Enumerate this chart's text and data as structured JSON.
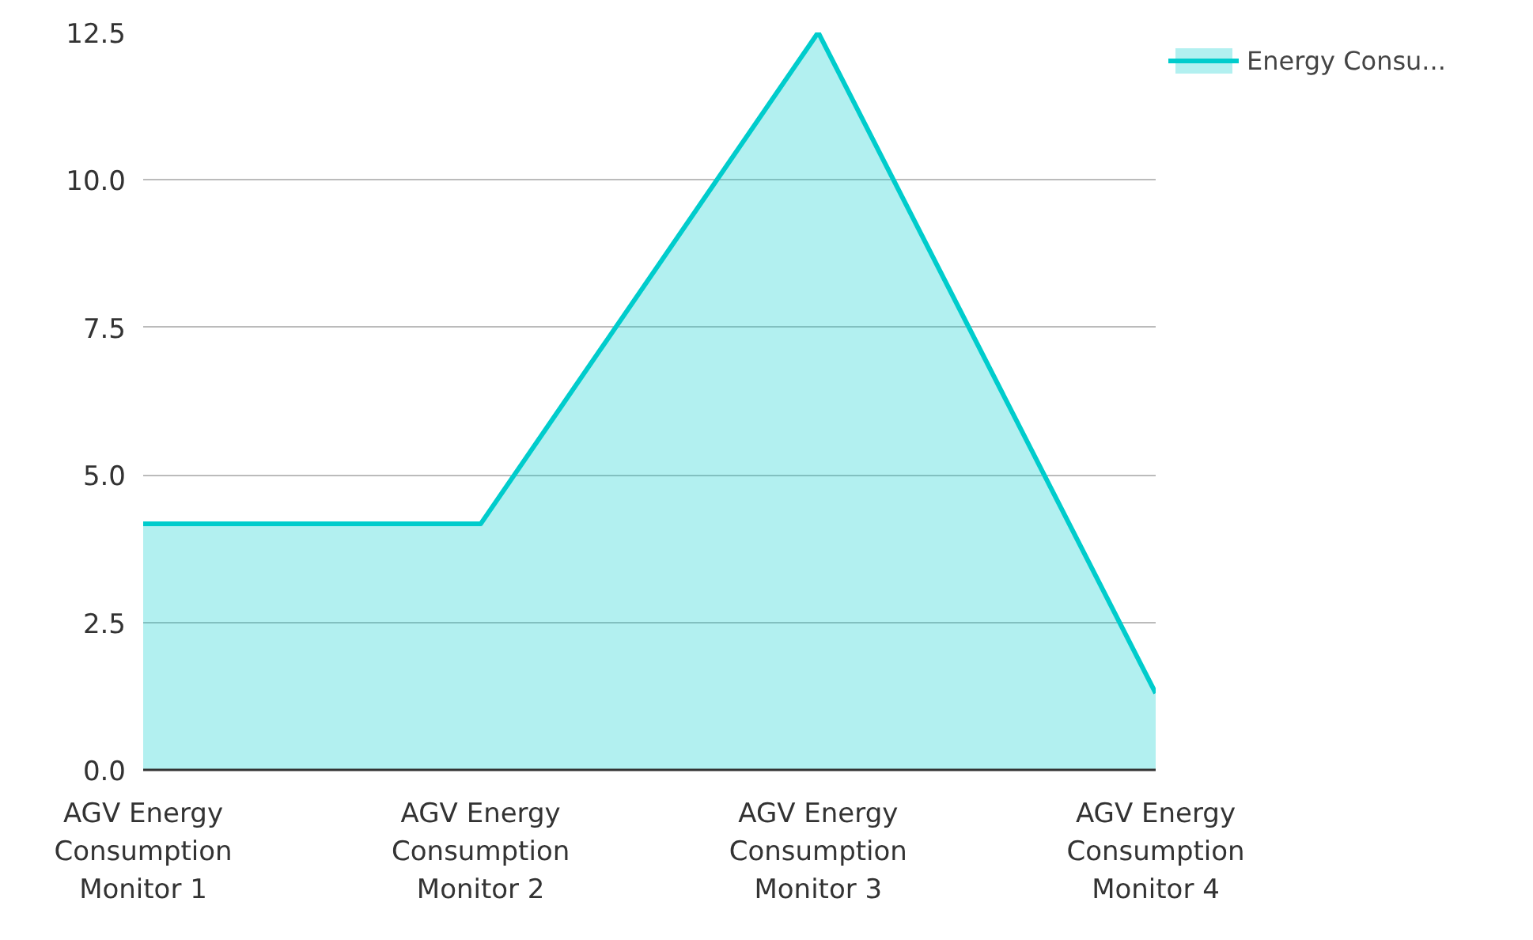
{
  "chart_data": {
    "type": "area",
    "categories": [
      "AGV Energy Consumption Monitor 1",
      "AGV Energy Consumption Monitor 2",
      "AGV Energy Consumption Monitor 3",
      "AGV Energy Consumption Monitor 4"
    ],
    "series": [
      {
        "name": "Energy Consu...",
        "color": "#00cccc",
        "values": [
          4.17,
          4.17,
          12.5,
          1.3
        ]
      }
    ],
    "ylim": [
      0,
      12.5
    ],
    "yticks": [
      {
        "value": 0,
        "label": "0.0"
      },
      {
        "value": 2.5,
        "label": "2.5"
      },
      {
        "value": 5,
        "label": "5.0"
      },
      {
        "value": 7.5,
        "label": "7.5"
      },
      {
        "value": 10,
        "label": "10.0"
      },
      {
        "value": 12.5,
        "label": "12.5"
      }
    ],
    "grid": "y",
    "legend": "top right"
  }
}
